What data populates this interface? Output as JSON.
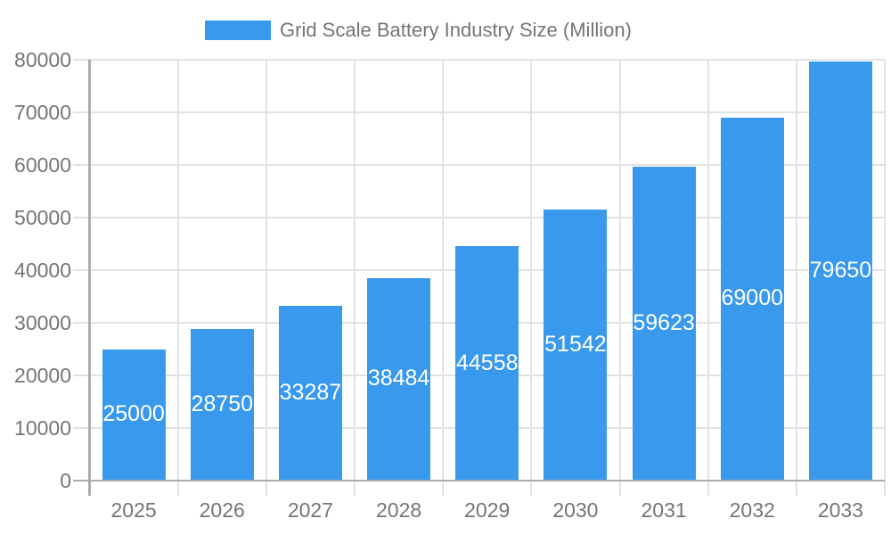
{
  "chart_data": {
    "type": "bar",
    "legend": "Grid Scale Battery Industry Size (Million)",
    "legend_position": "top",
    "categories": [
      "2025",
      "2026",
      "2027",
      "2028",
      "2029",
      "2030",
      "2031",
      "2032",
      "2033"
    ],
    "values": [
      25000,
      28750,
      33287,
      38484,
      44558,
      51542,
      59623,
      69000,
      79650
    ],
    "y_ticks": [
      "0",
      "10000",
      "20000",
      "30000",
      "40000",
      "50000",
      "60000",
      "70000",
      "80000"
    ],
    "ylim": [
      0,
      80000
    ],
    "grid": true,
    "bar_label_position": "inside-center",
    "xlabel": "",
    "ylabel": "",
    "colors": {
      "bar": "#3999EC",
      "bar_label": "#FFFFFF",
      "axis_text": "#757575",
      "gridline": "#E2E2E2",
      "axis_line": "#ACACAC",
      "background": "#FFFFFF"
    }
  }
}
